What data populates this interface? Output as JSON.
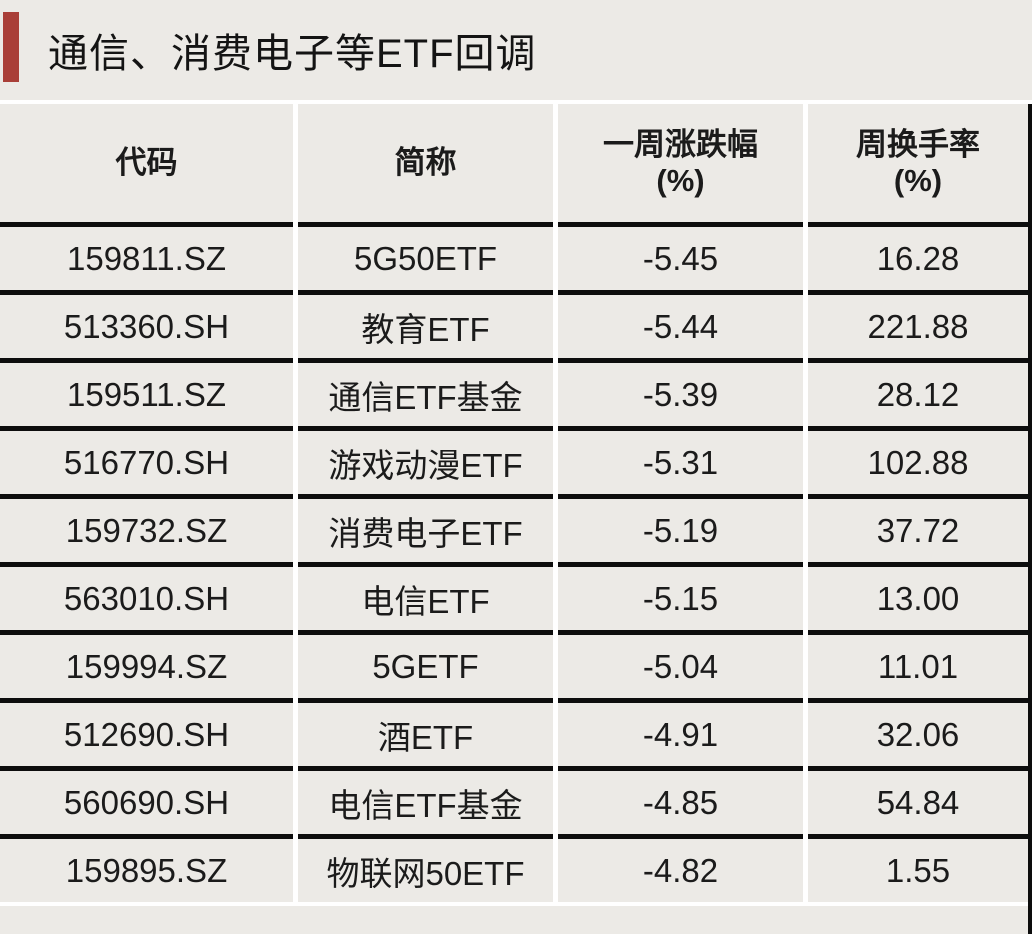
{
  "title": {
    "text": "通信、消费电子等ETF回调"
  },
  "colors": {
    "background": "#ECEAE6",
    "accent_red": "#A93F38",
    "border_black": "#0D0D0D",
    "separator_white": "#FFFFFF",
    "text": "#1B1B1B"
  },
  "chart_data": {
    "type": "table",
    "title": "通信、消费电子等ETF回调",
    "columns": [
      {
        "label": "代码",
        "sub": ""
      },
      {
        "label": "简称",
        "sub": ""
      },
      {
        "label": "一周涨跌幅",
        "sub": "(%)"
      },
      {
        "label": "周换手率",
        "sub": "(%)"
      }
    ],
    "rows": [
      [
        "159811.SZ",
        "5G50ETF",
        "-5.45",
        "16.28"
      ],
      [
        "513360.SH",
        "教育ETF",
        "-5.44",
        "221.88"
      ],
      [
        "159511.SZ",
        "通信ETF基金",
        "-5.39",
        "28.12"
      ],
      [
        "516770.SH",
        "游戏动漫ETF",
        "-5.31",
        "102.88"
      ],
      [
        "159732.SZ",
        "消费电子ETF",
        "-5.19",
        "37.72"
      ],
      [
        "563010.SH",
        "电信ETF",
        "-5.15",
        "13.00"
      ],
      [
        "159994.SZ",
        "5GETF",
        "-5.04",
        "11.01"
      ],
      [
        "512690.SH",
        "酒ETF",
        "-4.91",
        "32.06"
      ],
      [
        "560690.SH",
        "电信ETF基金",
        "-4.85",
        "54.84"
      ],
      [
        "159895.SZ",
        "物联网50ETF",
        "-4.82",
        "1.55"
      ]
    ]
  }
}
